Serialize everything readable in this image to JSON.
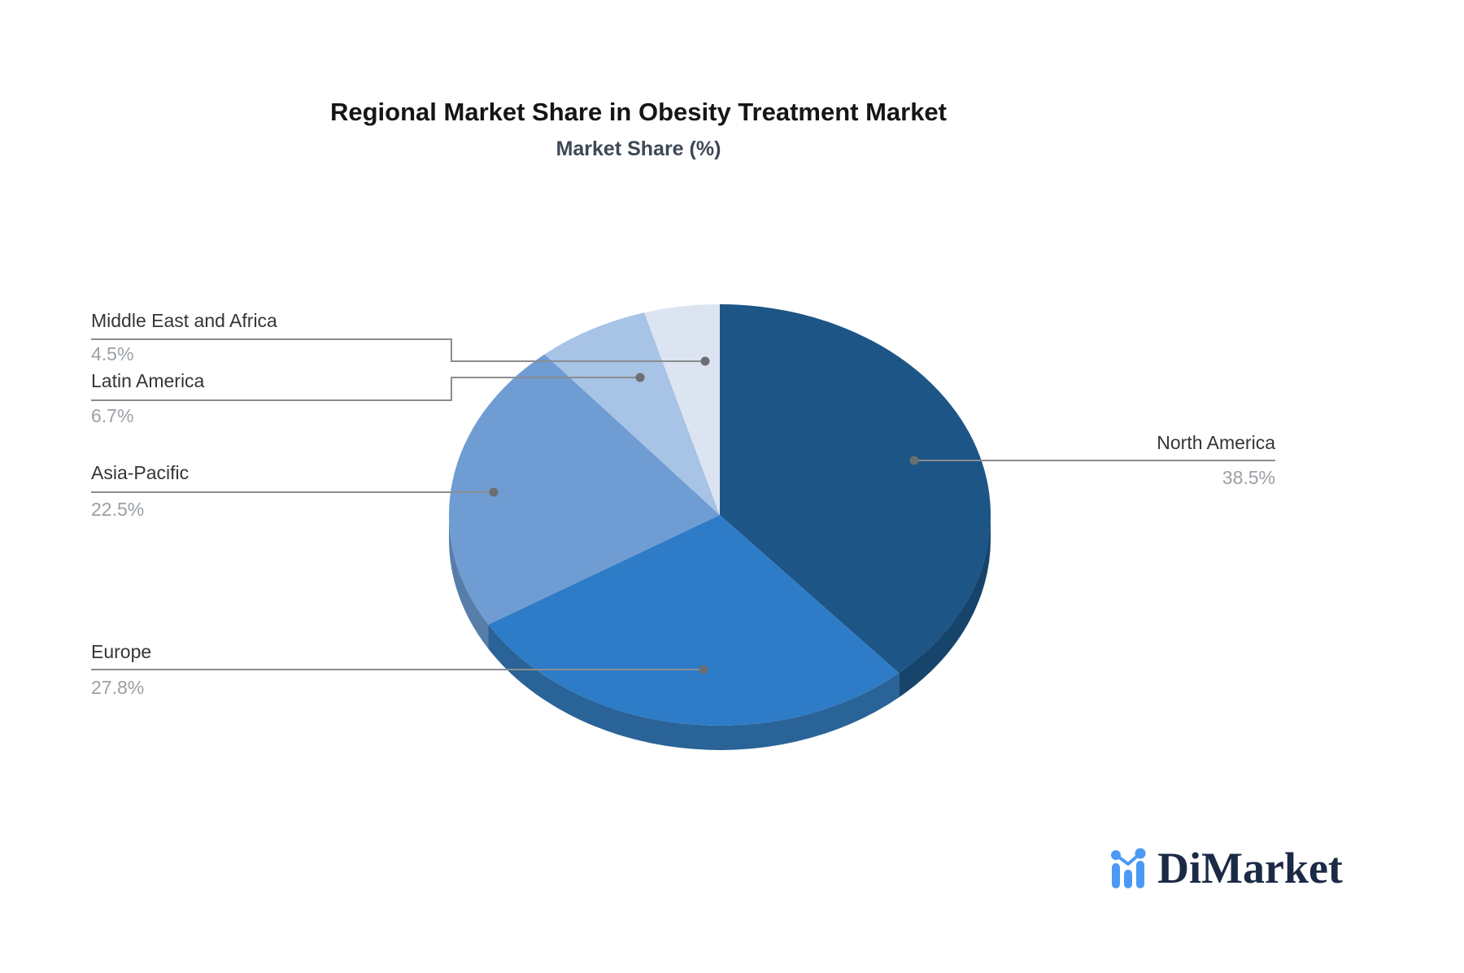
{
  "title": "Regional Market Share in Obesity Treatment Market",
  "subtitle": "Market Share (%)",
  "brand": {
    "name": "DiMarket",
    "icon_color": "#4a9af5",
    "text_color": "#1b2a45"
  },
  "chart_data": {
    "type": "pie",
    "title": "Regional Market Share in Obesity Treatment Market",
    "subtitle": "Market Share (%)",
    "unit": "%",
    "style": "3d-pie",
    "legend_position": "none",
    "labels_style": "leader-lines",
    "start_angle_deg": 0,
    "clockwise": true,
    "slices": [
      {
        "label": "North America",
        "value": 38.5,
        "display": "38.5%",
        "color": "#1d5586",
        "side_color": "#17446b"
      },
      {
        "label": "Europe",
        "value": 27.8,
        "display": "27.8%",
        "color": "#2e7cc7",
        "side_color": "#2a6397"
      },
      {
        "label": "Asia-Pacific",
        "value": 22.5,
        "display": "22.5%",
        "color": "#6f9cd2",
        "side_color": "#567ea9"
      },
      {
        "label": "Latin America",
        "value": 6.7,
        "display": "6.7%",
        "color": "#a7c3e5",
        "side_color": "#8aa3c2"
      },
      {
        "label": "Middle East and Africa",
        "value": 4.5,
        "display": "4.5%",
        "color": "#dce4f1",
        "side_color": "#b9c4d4"
      }
    ],
    "leader_line_color": "#8a8d90",
    "leader_dot_color": "#6b6f73"
  }
}
